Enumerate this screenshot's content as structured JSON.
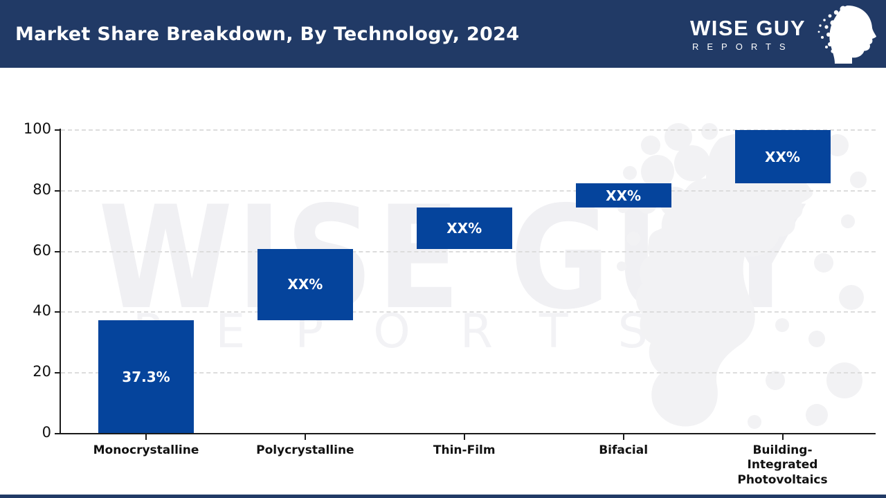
{
  "header": {
    "title": "Market Share Breakdown, By Technology, 2024",
    "logo": {
      "line1": "WISE GUY",
      "line2": "REPORTS"
    }
  },
  "watermark": {
    "line1": "WISE GUY",
    "line2": "REPORTS"
  },
  "footer": {},
  "chart_data": {
    "type": "bar",
    "subtype": "waterfall",
    "title": "Market Share Breakdown, By Technology, 2024",
    "categories": [
      "Monocrystalline",
      "Polycrystalline",
      "Thin-Film",
      "Bifacial",
      "Building-Integrated Photovoltaics"
    ],
    "xtick_display": [
      "Monocrystalline",
      "Polycrystalline",
      "Thin-Film",
      "Bifacial",
      "Building-\nIntegrated\nPhotovoltaics"
    ],
    "segments": [
      {
        "category": "Monocrystalline",
        "start": 0,
        "end": 37.3,
        "label": "37.3%"
      },
      {
        "category": "Polycrystalline",
        "start": 37.3,
        "end": 60.9,
        "label": "XX%"
      },
      {
        "category": "Thin-Film",
        "start": 60.9,
        "end": 74.4,
        "label": "XX%"
      },
      {
        "category": "Bifacial",
        "start": 74.4,
        "end": 82.4,
        "label": "XX%"
      },
      {
        "category": "Building-Integrated Photovoltaics",
        "start": 82.4,
        "end": 100,
        "label": "XX%"
      }
    ],
    "ylim": [
      0,
      100
    ],
    "yticks": [
      0,
      20,
      40,
      60,
      80,
      100
    ],
    "grid": true,
    "legend": false,
    "bar_color": "#05449c",
    "bar_label_color": "#ffffff",
    "axis_color": "#1a1a1a",
    "grid_color": "#dcdcdc",
    "header_color": "#213a66"
  }
}
